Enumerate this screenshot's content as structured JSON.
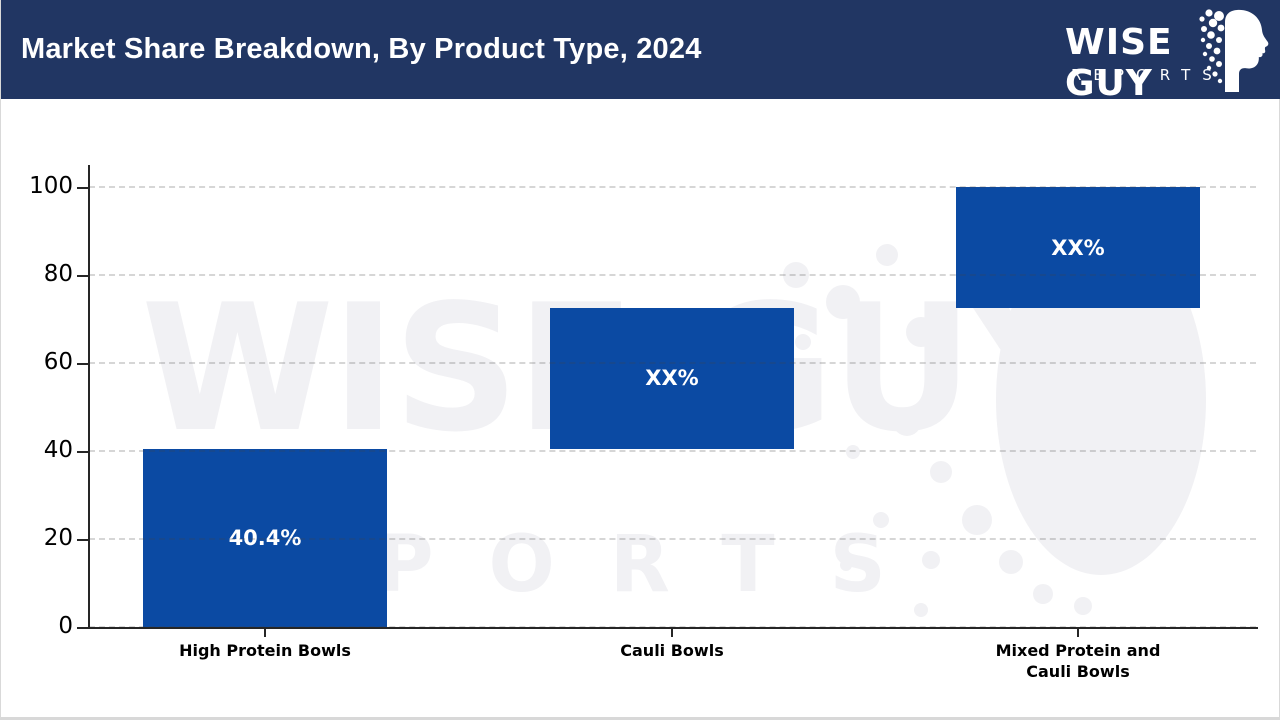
{
  "header": {
    "title": "Market Share Breakdown, By Product Type, 2024",
    "bg_color": "#213663",
    "logo": {
      "line1": "WISE GUY",
      "line2": "REPORTS"
    }
  },
  "watermark": {
    "line1": "WISE GUY",
    "line2": "REPORTS"
  },
  "chart_data": {
    "type": "bar",
    "subtype": "waterfall",
    "title": "Market Share Breakdown, By Product Type, 2024",
    "categories": [
      "High Protein Bowls",
      "Cauli Bowls",
      "Mixed Protein and Cauli Bowls"
    ],
    "category_lines": [
      [
        "High Protein Bowls"
      ],
      [
        "Cauli Bowls"
      ],
      [
        "Mixed Protein and",
        "Cauli Bowls"
      ]
    ],
    "segments": [
      {
        "start": 0,
        "end": 40.4,
        "label": "40.4%"
      },
      {
        "start": 40.5,
        "end": 72.5,
        "label": "XX%"
      },
      {
        "start": 72.5,
        "end": 100,
        "label": "XX%"
      }
    ],
    "yticks": [
      0,
      20,
      40,
      60,
      80,
      100
    ],
    "ylim": [
      0,
      105
    ],
    "xlabel": "",
    "ylabel": "",
    "grid": "dashed-horizontal",
    "legend": "none",
    "bar_color": "#0b4aa3",
    "bar_label_color": "#ffffff"
  }
}
